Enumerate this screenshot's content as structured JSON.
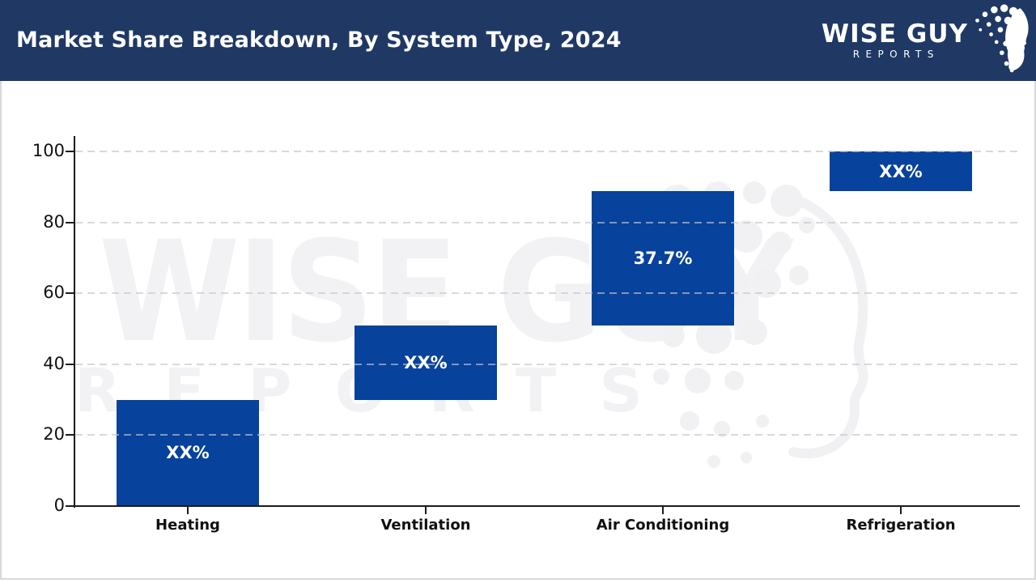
{
  "header": {
    "title": "Market Share Breakdown, By System Type, 2024",
    "brand": {
      "name_line": "WISE GUY",
      "reports_line": "REPORTS"
    }
  },
  "watermark": {
    "name_line": "WISE GUY",
    "reports_line": "REPORTS"
  },
  "colors": {
    "header_bg": "#1f3864",
    "bar": "#07429c",
    "bar_label": "#ffffff",
    "axis": "#1c1c1c",
    "grid": "#c5c5c5",
    "watermark": "#f2f2f5",
    "frame": "#d8d8d8"
  },
  "chart_data": {
    "type": "bar",
    "subtype": "waterfall",
    "title": "Market Share Breakdown, By System Type, 2024",
    "categories": [
      "Heating",
      "Ventilation",
      "Air Conditioning",
      "Refrigeration"
    ],
    "segments": [
      {
        "category": "Heating",
        "start": 0,
        "end": 30,
        "value_label": "XX%"
      },
      {
        "category": "Ventilation",
        "start": 30,
        "end": 51,
        "value_label": "XX%"
      },
      {
        "category": "Air Conditioning",
        "start": 51,
        "end": 88.7,
        "value": 37.7,
        "value_label": "37.7%"
      },
      {
        "category": "Refrigeration",
        "start": 88.7,
        "end": 100,
        "value_label": "XX%"
      }
    ],
    "yticks": [
      0,
      20,
      40,
      60,
      80,
      100
    ],
    "ylim": [
      0,
      104
    ],
    "xlabel": "",
    "ylabel": "",
    "grid": "horizontal-dashed",
    "legend": "none"
  }
}
